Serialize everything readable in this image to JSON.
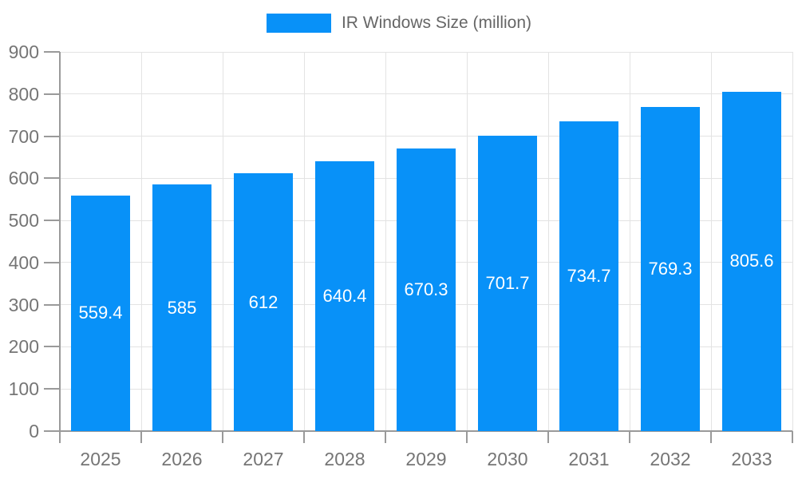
{
  "chart_data": {
    "type": "bar",
    "title": "",
    "legend": "IR Windows Size (million)",
    "legend_position": "top-center",
    "categories": [
      "2025",
      "2026",
      "2027",
      "2028",
      "2029",
      "2030",
      "2031",
      "2032",
      "2033"
    ],
    "values": [
      559.4,
      585,
      612,
      640.4,
      670.3,
      701.7,
      734.7,
      769.3,
      805.6
    ],
    "value_labels": [
      "559.4",
      "585",
      "612",
      "640.4",
      "670.3",
      "701.7",
      "734.7",
      "769.3",
      "805.6"
    ],
    "xlabel": "",
    "ylabel": "",
    "ylim": [
      0,
      900
    ],
    "ytick_interval": 100,
    "ytick_labels": [
      "0",
      "100",
      "200",
      "300",
      "400",
      "500",
      "600",
      "700",
      "800",
      "900"
    ],
    "grid": true,
    "colors": {
      "bar": "#0891f8",
      "value_label": "#ffffff",
      "axis_line": "#9a9a9a",
      "gridline": "#e3e3e3",
      "tick_label": "#757575",
      "legend_text": "#666666",
      "background": "#ffffff"
    }
  }
}
